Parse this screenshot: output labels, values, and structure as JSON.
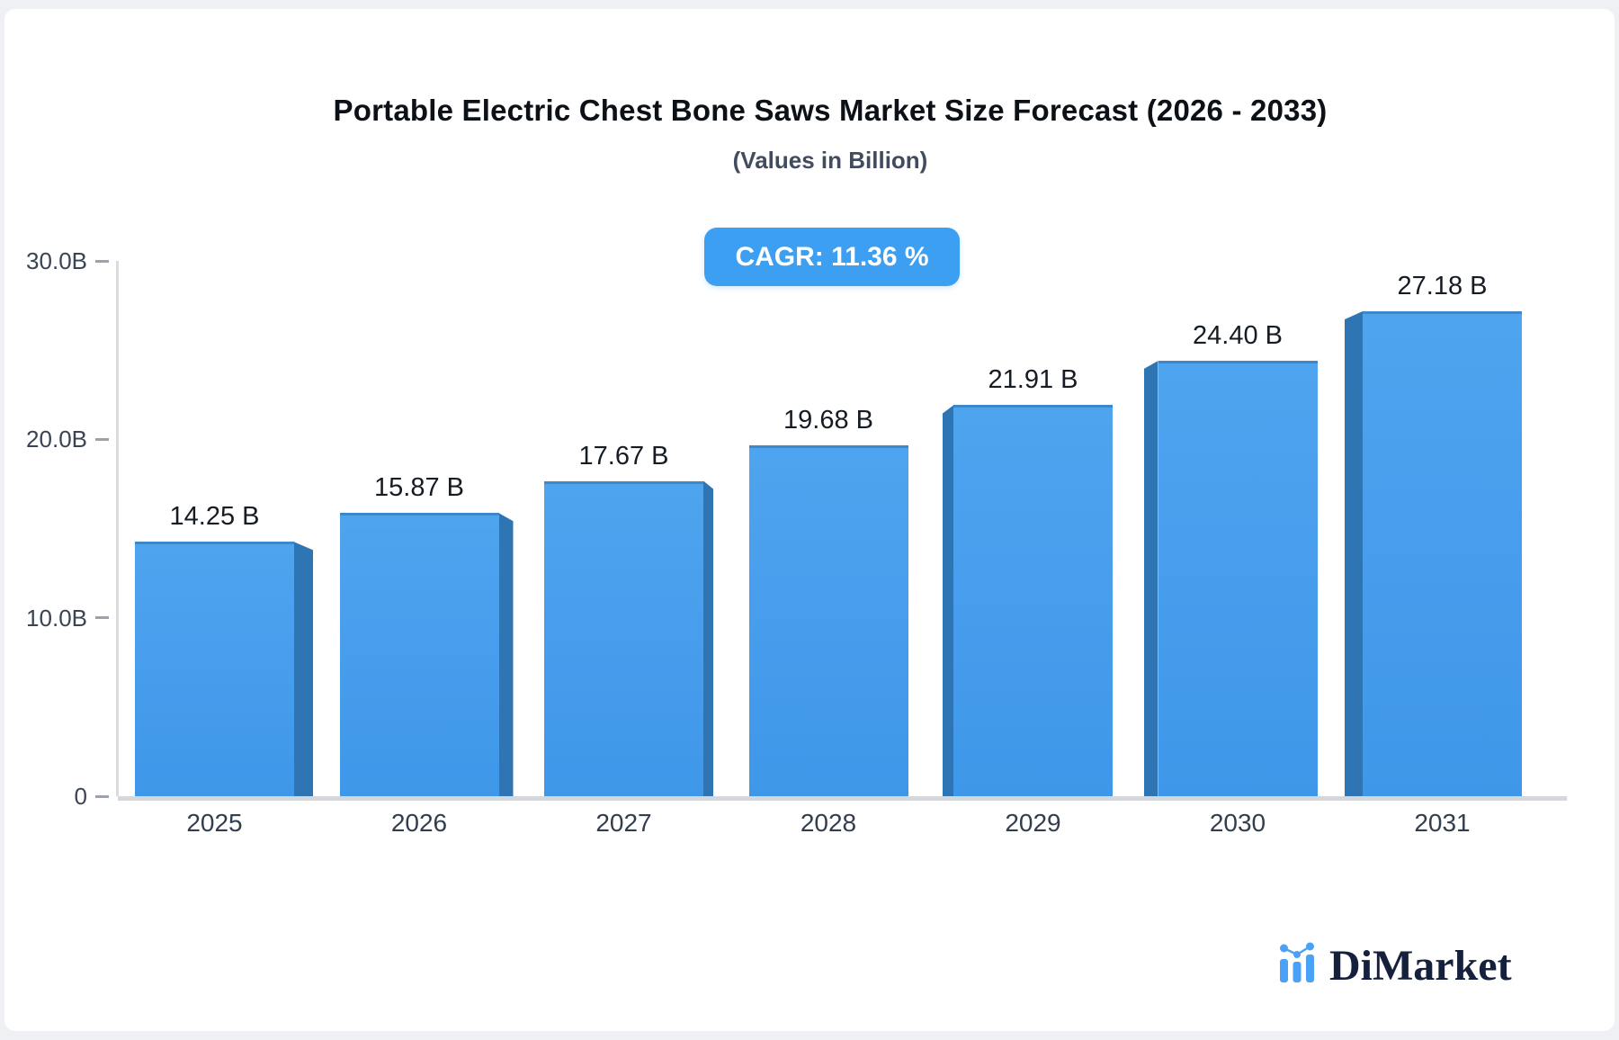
{
  "page": {
    "background": "#eef0f3",
    "card_background": "#ffffff"
  },
  "header": {
    "title": "Portable Electric Chest Bone Saws Market Size Forecast (2026 - 2033)",
    "subtitle": "(Values in Billion)"
  },
  "badge": {
    "label": "CAGR: 11.36 %",
    "background": "#3d9ff2",
    "text_color": "#ffffff"
  },
  "chart_data": {
    "type": "bar",
    "title": "Portable Electric Chest Bone Saws Market Size Forecast (2026 - 2033)",
    "subtitle": "(Values in Billion)",
    "categories": [
      "2025",
      "2026",
      "2027",
      "2028",
      "2029",
      "2030",
      "2031"
    ],
    "values": [
      14.25,
      15.87,
      17.67,
      19.68,
      21.91,
      24.4,
      27.18
    ],
    "value_labels": [
      "14.25 B",
      "15.87 B",
      "17.67 B",
      "19.68 B",
      "21.91 B",
      "24.40 B",
      "27.18 B"
    ],
    "xlabel": "",
    "ylabel": "",
    "ylim": [
      0,
      30
    ],
    "y_ticks": [
      {
        "label": "30.0B",
        "value": 30
      },
      {
        "label": "20.0B",
        "value": 20
      },
      {
        "label": "10.0B",
        "value": 10
      },
      {
        "label": "0",
        "value": 0
      }
    ],
    "grid": false,
    "legend": false,
    "bar_3d_depths": [
      21,
      16,
      11,
      0,
      12,
      16,
      20
    ],
    "bar_3d_side": [
      "right",
      "right",
      "right",
      "none",
      "left",
      "left",
      "left"
    ],
    "colors": {
      "bar_top": "#4fa4ef",
      "bar_bottom": "#3f97e9",
      "bar_top_edge": "#3d87cb",
      "bar_side_panel": "#2f75b4",
      "axis": "#d4d7db",
      "tick": "#9aa2ad",
      "tick_label": "#3a4453",
      "value_label": "#161c24",
      "category_label": "#323d4e"
    }
  },
  "logo": {
    "name": "DiMarket",
    "text_color": "#15203c",
    "icon_color": "#4ba1f5",
    "icon_name": "dimarket-bar-chart-icon"
  }
}
